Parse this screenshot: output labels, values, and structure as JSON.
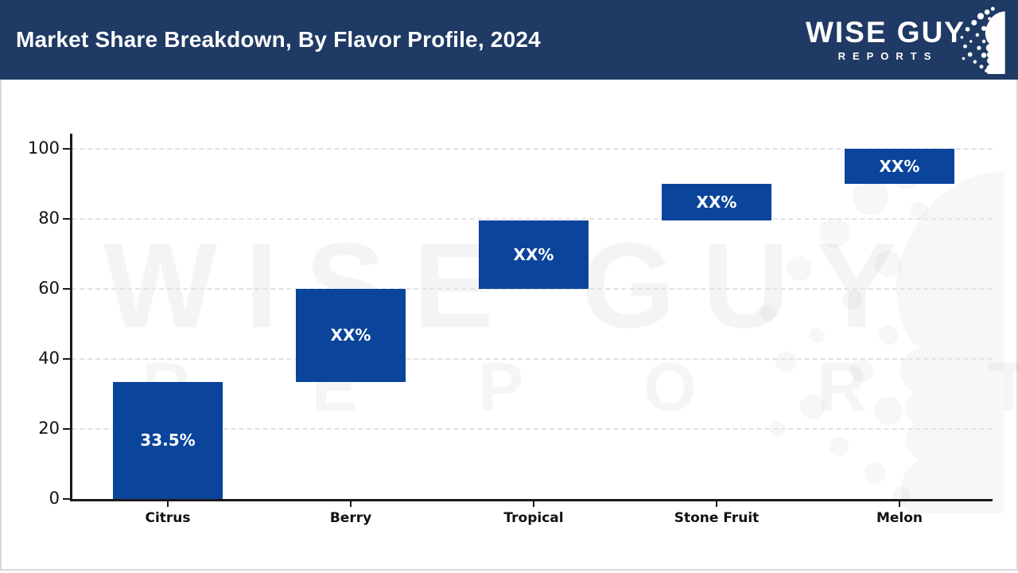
{
  "header": {
    "title": "Market Share Breakdown, By Flavor Profile, 2024",
    "logo": {
      "line1": "WISE GUY",
      "line2": "REPORTS",
      "face_icon": "dotted-face-profile"
    }
  },
  "watermark": {
    "line1": "WISE GUY",
    "line2": "R E P O R T S",
    "face_icon": "dotted-face-profile"
  },
  "colors": {
    "header_bg": "#1f3a64",
    "bar": "#0a449b",
    "bar_label_text": "#ffffff",
    "axis": "#1a1a1a",
    "gridline": "#e3e3e3",
    "tick_label_text": "#111111"
  },
  "chart_data": {
    "type": "bar",
    "variant": "waterfall",
    "title": "Market Share Breakdown, By Flavor Profile, 2024",
    "categories": [
      "Citrus",
      "Berry",
      "Tropical",
      "Stone Fruit",
      "Melon"
    ],
    "segments": [
      {
        "category": "Citrus",
        "start": 0,
        "end": 33.5,
        "label": "33.5%"
      },
      {
        "category": "Berry",
        "start": 33.5,
        "end": 60,
        "label": "XX%"
      },
      {
        "category": "Tropical",
        "start": 60,
        "end": 79.5,
        "label": "XX%"
      },
      {
        "category": "Stone Fruit",
        "start": 79.5,
        "end": 90,
        "label": "XX%"
      },
      {
        "category": "Melon",
        "start": 90,
        "end": 100,
        "label": "XX%"
      }
    ],
    "increment_values": [
      33.5,
      26.5,
      19.5,
      10.5,
      10
    ],
    "bar_labels": [
      "33.5%",
      "XX%",
      "XX%",
      "XX%",
      "XX%"
    ],
    "yticks": [
      0,
      20,
      40,
      60,
      80,
      100
    ],
    "ylim": [
      0,
      105
    ],
    "xlabel": "",
    "ylabel": "",
    "grid": "horizontal-dashed",
    "legend": "none"
  }
}
